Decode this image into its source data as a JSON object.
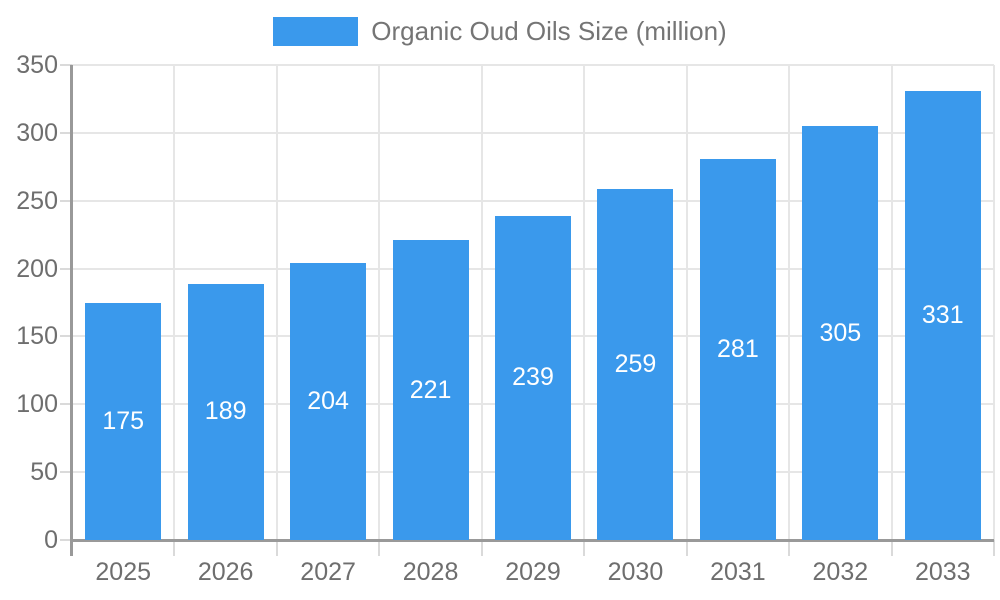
{
  "chart_data": {
    "type": "bar",
    "title": "",
    "legend": "Organic Oud Oils Size (million)",
    "legend_position": "top",
    "categories": [
      "2025",
      "2026",
      "2027",
      "2028",
      "2029",
      "2030",
      "2031",
      "2032",
      "2033"
    ],
    "values": [
      175,
      189,
      204,
      221,
      239,
      259,
      281,
      305,
      331
    ],
    "value_labels": [
      "175",
      "189",
      "204",
      "221",
      "239",
      "259",
      "281",
      "305",
      "331"
    ],
    "xlabel": "",
    "ylabel": "",
    "ylim": [
      0,
      350
    ],
    "yticks": [
      0,
      50,
      100,
      150,
      200,
      250,
      300,
      350
    ],
    "grid": true,
    "colors": {
      "bar": "#3A99EC",
      "value_label": "#FFFFFF",
      "axis": "#999999",
      "grid": "#E6E6E6",
      "tick": "#DADADA",
      "axis_text": "#6E6E6E",
      "legend_text": "#757575",
      "background": "#FFFFFF"
    }
  }
}
